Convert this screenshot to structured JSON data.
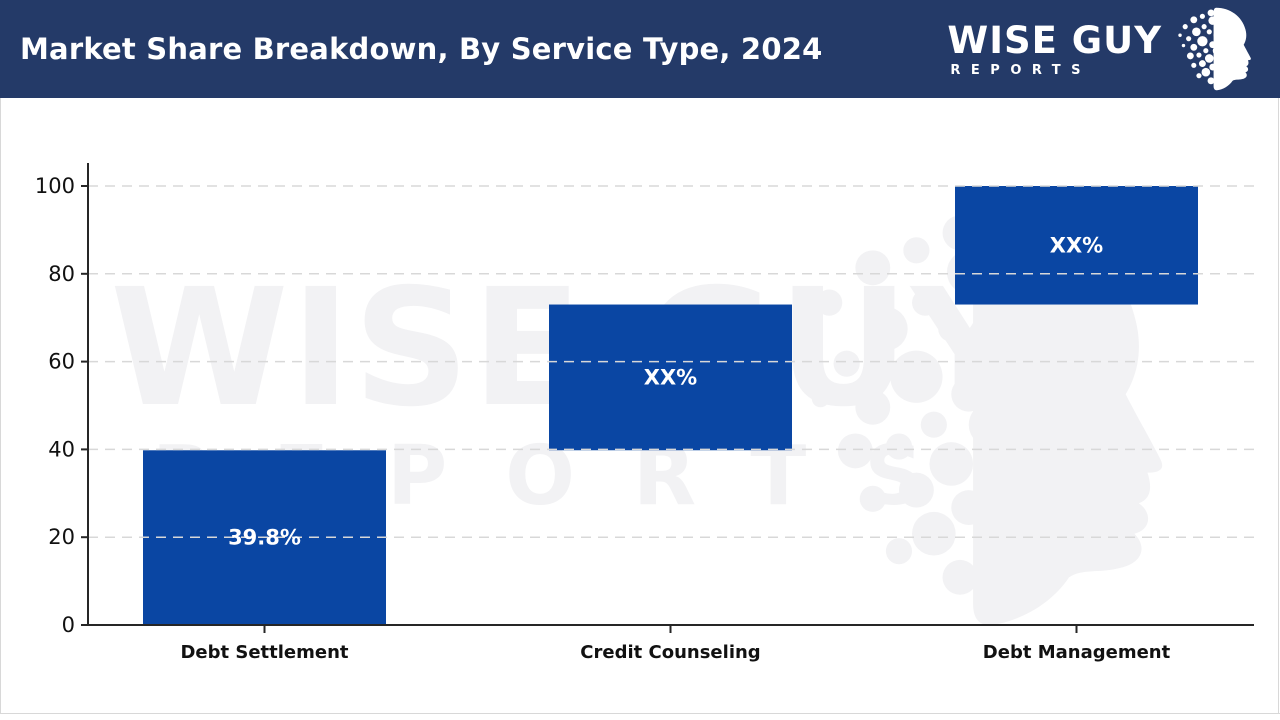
{
  "header": {
    "title": "Market Share Breakdown, By Service Type, 2024",
    "brand": {
      "name": "WISE GUY",
      "sub": "REPORTS"
    }
  },
  "watermark": {
    "name": "WISE GUY",
    "sub": "REPORTS"
  },
  "colors": {
    "header_bg": "#243A68",
    "bar": "#0A46A3",
    "axis": "#262626",
    "grid": "#D8D8D8",
    "tick_text": "#111111",
    "bar_label": "#FFFFFF",
    "watermark": "#F2F2F4"
  },
  "chart_data": {
    "type": "bar",
    "variant": "waterfall",
    "title": "Market Share Breakdown, By Service Type, 2024",
    "categories": [
      "Debt Settlement",
      "Credit Counseling",
      "Debt Management"
    ],
    "segments": [
      {
        "category": "Debt Settlement",
        "start": 0,
        "end": 39.8,
        "label": "39.8%"
      },
      {
        "category": "Credit Counseling",
        "start": 39.8,
        "end": 73,
        "label": "XX%"
      },
      {
        "category": "Debt Management",
        "start": 73,
        "end": 100,
        "label": "XX%"
      }
    ],
    "yticks": [
      0,
      20,
      40,
      60,
      80,
      100
    ],
    "ylim": [
      0,
      105
    ],
    "xlabel": "",
    "ylabel": "",
    "grid": "horizontal-dashed",
    "legend": "none",
    "bar_color": "#0A46A3",
    "label_color": "#FFFFFF"
  }
}
